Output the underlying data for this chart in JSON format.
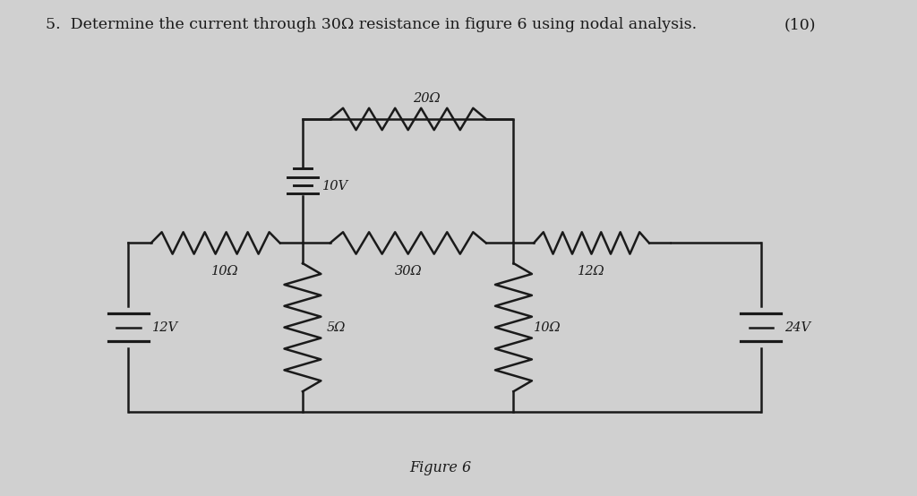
{
  "title_text": "5.  Determine the current through 30Ω resistance in figure 6 using nodal analysis.",
  "title_mark": "(10)",
  "figure_label": "Figure 6",
  "bg_color": "#d0d0d0",
  "line_color": "#1a1a1a",
  "text_color": "#1a1a1a",
  "title_fontsize": 12.5,
  "label_fontsize": 10.5,
  "fig_label_fontsize": 11.5,
  "xL": 0.14,
  "xN1": 0.33,
  "xN2": 0.56,
  "xN3": 0.73,
  "xR": 0.83,
  "yBot": 0.17,
  "yMid": 0.51,
  "yTop": 0.76
}
